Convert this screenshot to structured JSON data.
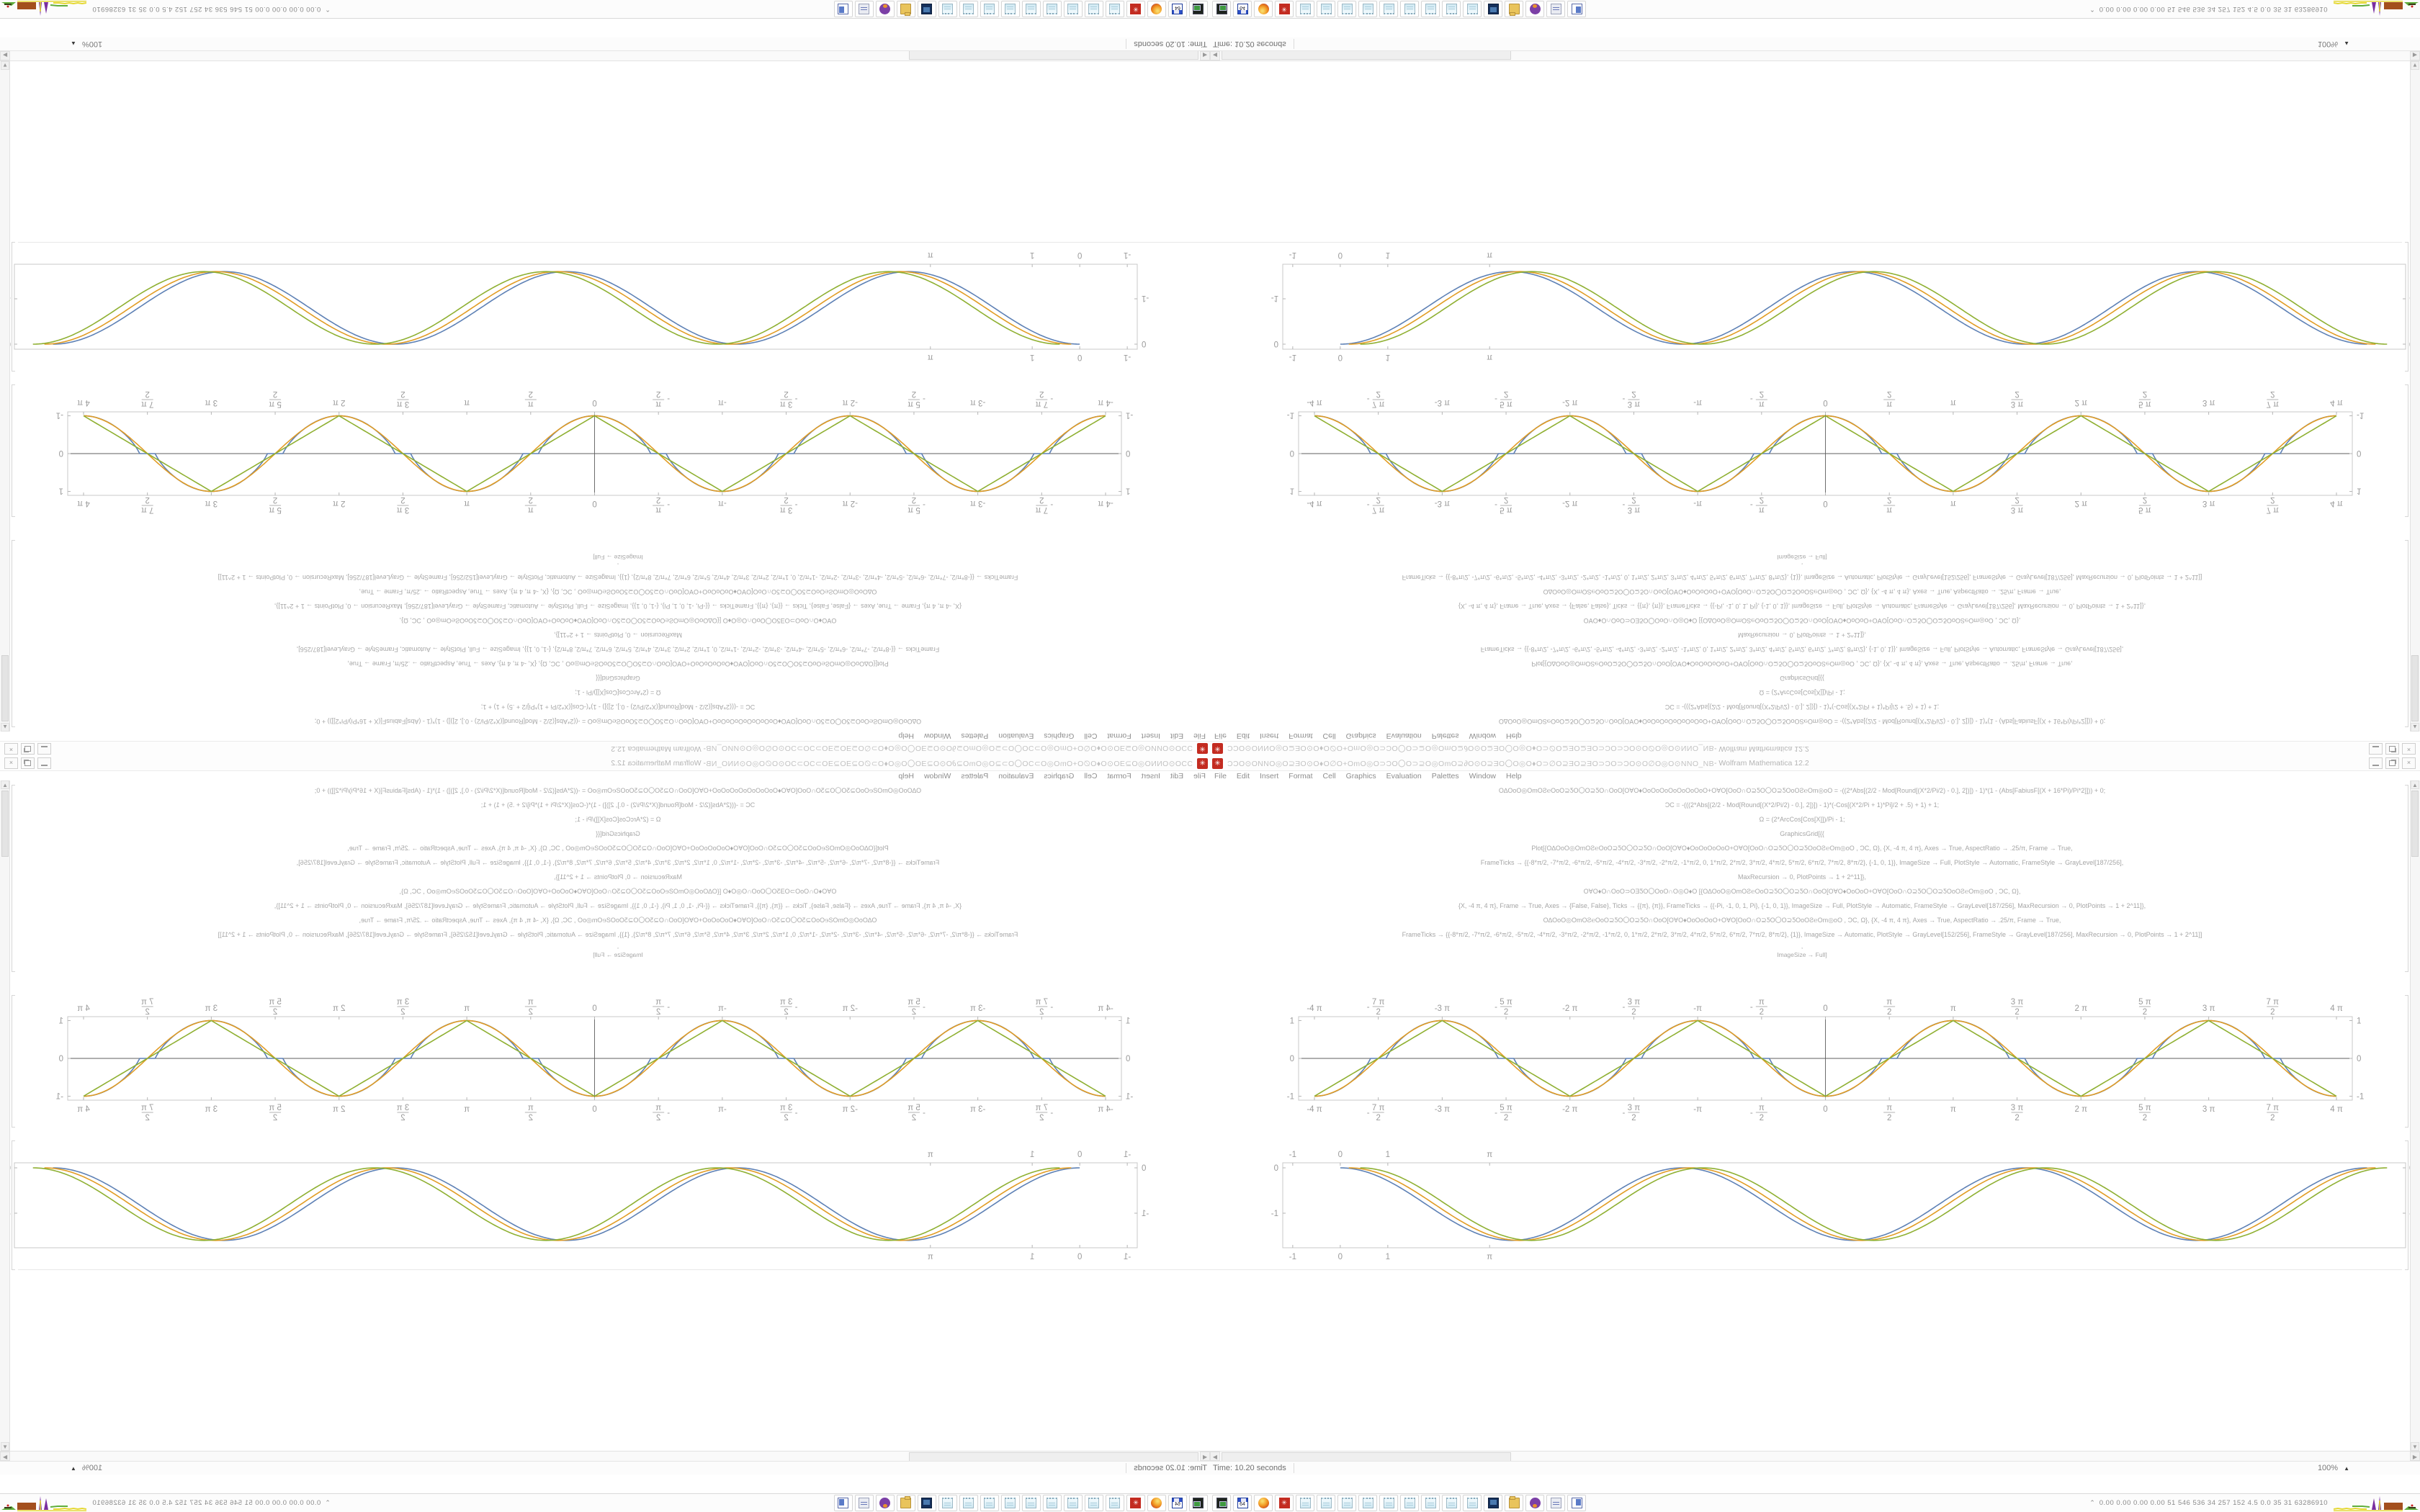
{
  "window": {
    "title_junk": "ƆƆΟ⊙ΟΝΝΟ◎Ο⊇ƎΟ⊙Ο♦Ο∅Ο+ΟmΟ◎Ο⊃ƆΟ〇Ο⊃⊇Ο◎ΟmΟ⊇∂Ο⊙Ο⊇ƎΟ〇Ο◎Ο♦Ο⊃∅Ο⊇ƎΟ⊇ƎΟ⊃ƆΟ⊃ƆΟ⊙Ο∅Ο◎Ο⊙ΝΝΟ_ΝΒ",
    "title_text": " - Wolfram Mathematica 12.2",
    "controls": {
      "close": "×"
    }
  },
  "menu": {
    "items": [
      "File",
      "Edit",
      "Insert",
      "Format",
      "Cell",
      "Graphics",
      "Evaluation",
      "Palettes",
      "Window",
      "Help"
    ]
  },
  "code": {
    "lines": [
      {
        "t": "Ο∆ΟοΟ◎ΟmΟƧ℮ΟοΟ⊇ƼΟ〇Ο⊇ƼΟ∩ΟοΟ[Ο∀Ο♦ΟοΟοΟοΟοΟοΟοΟοΟ+Ο∀Ο[ΟοΟ∩Ο⊇ƼΟ〇Ο⊇ƼΟοΟƧ℮Οm◎οΟ   = -((2*Abs[(2/2 - Mod[Round[(X*2/Pi/2) - 0.], 2])]) - 1)*(1 - (Abs[FabiusF[(X + 16*Pi)/Pi*2]])) + 0;"
      },
      {
        "t": "ƆC = -(((2*Abs[(2/2 - Mod[Round[(X*2/Pi/2) - 0.], 2])]) - 1)*(-Cos[(X*2/Pi + 1)*Pi]/2 + .5) + 1) + 1;"
      },
      {
        "t": "Ω = (2*ArcCos[Cos[X]])/Pi - 1;"
      },
      {
        "t": "GraphicsGrid[{{"
      },
      {
        "t": "Plot[{Ο∆ΟοΟ◎ΟmΟƧ℮ΟοΟ⊇ƼΟ〇Ο⊇ƼΟ∩ΟοΟ[Ο∀Ο♦ΟοΟοΟοΟοΟ+Ο∀Ο[ΟοΟ∩Ο⊇ƼΟ〇Ο⊇ƼΟοΟƧ℮Οm◎οΟ , ƆC, Ω}, {X, -4 π, 4 π}, Axes → True, AspectRatio → .25/π, Frame → True,"
      },
      {
        "t": "FrameTicks → {{-8*π/2, -7*π/2, -6*π/2, -5*π/2, -4*π/2, -3*π/2, -2*π/2, -1*π/2, 0, 1*π/2, 2*π/2, 3*π/2, 4*π/2, 5*π/2, 6*π/2, 7*π/2, 8*π/2}, {-1, 0, 1}}, ImageSize → Full, PlotStyle → Automatic, FrameStyle → GrayLevel[187/256],"
      },
      {
        "t": "MaxRecursion → 0, PlotPoints → 1 + 2^11]},"
      },
      {
        "t": "Ο∀Ο♦Ο∩ΟοΟ⊃ΟƎƼΟ〇ΟοΟ∩Ο◎Ο♦Ο  [{Ο∆ΟοΟ◎ΟmΟƧ℮ΟοΟ⊇ƼΟ〇Ο⊇ƼΟ∩ΟοΟ[Ο∀Ο♦ΟοΟοΟ+Ο∀Ο[ΟοΟ∩Ο⊇ƼΟ〇Ο⊇ƼΟοΟƧ℮Οm◎οΟ , ƆC, Ω},"
      },
      {
        "t": "{X, -4 π, 4 π}, Frame → True, Axes → {False, False}, Ticks → {{π}, {π}}, FrameTicks → {{-Pi, -1, 0, 1, Pi}, {-1, 0, 1}}, ImageSize → Full, PlotStyle → Automatic, FrameStyle → GrayLevel[187/256], MaxRecursion → 0, PlotPoints → 1 + 2^11]},"
      },
      {
        "t": "Ο∆ΟοΟ◎ΟmΟƧ℮ΟοΟ⊇ƼΟ〇Ο⊇ƼΟ∩ΟοΟ[Ο∀Ο♦ΟοΟοΟοΟ+Ο∀Ο[ΟοΟ∩Ο⊇ƼΟ〇Ο⊇ƼΟοΟƧ℮Οm◎οΟ , ƆC, Ω}, {X, -4 π, 4 π}, Axes → True, AspectRatio → .25/π, Frame → True,"
      },
      {
        "t": "FrameTicks → {{-8*π/2, -7*π/2, -6*π/2, -5*π/2, -4*π/2, -3*π/2, -2*π/2, -1*π/2, 0, 1*π/2, 2*π/2, 3*π/2, 4*π/2, 5*π/2, 6*π/2, 7*π/2, 8*π/2}, {1}}, ImageSize → Automatic, PlotStyle → GrayLevel[152/256], FrameStyle → GrayLevel[187/256], MaxRecursion → 0, PlotPoints → 1 + 2^11]]"
      },
      {
        "t": ",",
        "cls": "tight"
      },
      {
        "t": "ImageSize → Full]",
        "cls": "tight"
      }
    ]
  },
  "status": {
    "time": "Time: 10.20 seconds",
    "zoom": "100%"
  },
  "taskbar": {
    "buttons": [
      {
        "icon": "terminal-icon"
      },
      {
        "icon": "floppy-64-icon",
        "label": "64"
      },
      {
        "icon": "firefox-icon"
      },
      {
        "icon": "mathematica-icon"
      },
      {
        "icon": "notepad-icon"
      },
      {
        "icon": "notepad-icon"
      },
      {
        "icon": "notepad-icon"
      },
      {
        "icon": "notepad-icon"
      },
      {
        "icon": "notepad-icon"
      },
      {
        "icon": "notepad-icon"
      },
      {
        "icon": "notepad-icon"
      },
      {
        "icon": "notepad-icon"
      },
      {
        "icon": "notepad-icon"
      },
      {
        "icon": "monitor-icon"
      },
      {
        "icon": "folder-icon"
      },
      {
        "icon": "media-player-icon"
      },
      {
        "icon": "document-icon"
      },
      {
        "icon": "window-switcher-icon"
      }
    ],
    "monitor": {
      "chevron": "⌃",
      "values": [
        "0.00",
        "0.00",
        "0.00",
        "0.00",
        "51",
        "546",
        "536",
        "34",
        "257",
        "152",
        "4.5",
        "0.0",
        "35",
        "31",
        "63286910"
      ],
      "graph_colors": {
        "yellow": "#e5d832",
        "green": "#5fae3c",
        "purple": "#7a2ea0",
        "brown": "#a34f1d",
        "red": "#cc2222",
        "dark": "#3a3a1a"
      }
    }
  },
  "chart_data": [
    {
      "type": "line",
      "title": "",
      "xlabel": "",
      "ylabel": "",
      "x_unit": "multiples of π",
      "xlim_u": [
        -4.124,
        4.124
      ],
      "ylim": [
        -1.104,
        1.104
      ],
      "frame": true,
      "axes": true,
      "grid": false,
      "legend": "none",
      "frame_color": "#c9c9c9",
      "axis_color": "#5f5f5f",
      "tick_label_color": "#9a9a9a",
      "x_ticks": [
        {
          "u": -4,
          "label": "-4 π"
        },
        {
          "u": -3.5,
          "num": "7 π",
          "den": "2",
          "neg": true
        },
        {
          "u": -3,
          "label": "-3 π"
        },
        {
          "u": -2.5,
          "num": "5 π",
          "den": "2",
          "neg": true
        },
        {
          "u": -2,
          "label": "-2 π"
        },
        {
          "u": -1.5,
          "num": "3 π",
          "den": "2",
          "neg": true
        },
        {
          "u": -1,
          "label": "-π"
        },
        {
          "u": -0.5,
          "num": "π",
          "den": "2",
          "neg": true
        },
        {
          "u": 0,
          "label": "0"
        },
        {
          "u": 0.5,
          "num": "π",
          "den": "2"
        },
        {
          "u": 1,
          "label": "π"
        },
        {
          "u": 1.5,
          "num": "3 π",
          "den": "2"
        },
        {
          "u": 2,
          "label": "2 π"
        },
        {
          "u": 2.5,
          "num": "5 π",
          "den": "2"
        },
        {
          "u": 3,
          "label": "3 π"
        },
        {
          "u": 3.5,
          "num": "7 π",
          "den": "2"
        },
        {
          "u": 4,
          "label": "4 π"
        }
      ],
      "y_ticks": [
        {
          "v": 1,
          "label": "1"
        },
        {
          "v": 0,
          "label": "0"
        },
        {
          "v": -1,
          "label": "-1"
        }
      ],
      "series": [
        {
          "name": "FabiusF smoothed wave",
          "color": "#5e81b5",
          "shape": "cos-flat",
          "flat_deadzone": 0.2,
          "samples_x_over_pi": [
            -4,
            -3.5,
            -3,
            -2.5,
            -2,
            -1.5,
            -1,
            -0.5,
            0,
            0.5,
            1,
            1.5,
            2,
            2.5,
            3,
            3.5,
            4
          ],
          "samples_y": [
            -1,
            0,
            1,
            0,
            -1,
            0,
            1,
            0,
            -1,
            0,
            1,
            0,
            -1,
            0,
            1,
            0,
            -1
          ]
        },
        {
          "name": "ƆC cosine wave",
          "color": "#e19c24",
          "shape": "cos",
          "samples_x_over_pi": [
            -4,
            -3.5,
            -3,
            -2.5,
            -2,
            -1.5,
            -1,
            -0.5,
            0,
            0.5,
            1,
            1.5,
            2,
            2.5,
            3,
            3.5,
            4
          ],
          "samples_y": [
            -1,
            0,
            1,
            0,
            -1,
            0,
            1,
            0,
            -1,
            0,
            1,
            0,
            -1,
            0,
            1,
            0,
            -1
          ]
        },
        {
          "name": "Ω triangle wave",
          "color": "#8fb032",
          "shape": "triangle",
          "samples_x_over_pi": [
            -4,
            -3.5,
            -3,
            -2.5,
            -2,
            -1.5,
            -1,
            -0.5,
            0,
            0.5,
            1,
            1.5,
            2,
            2.5,
            3,
            3.5,
            4
          ],
          "samples_y": [
            -1,
            0,
            1,
            0,
            -1,
            0,
            1,
            0,
            -1,
            0,
            1,
            0,
            -1,
            0,
            1,
            0,
            -1
          ]
        }
      ]
    },
    {
      "type": "line",
      "title": "",
      "xlabel": "",
      "ylabel": "",
      "xlim": [
        -1.21,
        22.41
      ],
      "ylim": [
        -1.762,
        0.111
      ],
      "frame": true,
      "axes": false,
      "grid": false,
      "legend": "none",
      "frame_color": "#c9c9c9",
      "tick_label_color": "#9a9a9a",
      "x_ticks": [
        {
          "x": -1,
          "label": "-1"
        },
        {
          "x": 0,
          "label": "0"
        },
        {
          "x": 1,
          "label": "1"
        },
        {
          "x": 3.1416,
          "label": "π"
        }
      ],
      "y_ticks": [
        {
          "v": 0,
          "label": "0"
        },
        {
          "v": -1,
          "label": "-1"
        }
      ],
      "wave": {
        "formula": "y = -0.8*(1 - cos(2π(x - phase)/7.2))",
        "period": 7.2,
        "min": -1.6,
        "max": 0,
        "domain_length": 21.6
      },
      "series": [
        {
          "name": "blue shifted wave",
          "color": "#5e81b5",
          "phase": 0
        },
        {
          "name": "orange shifted wave",
          "color": "#e19c24",
          "phase": 0.18
        },
        {
          "name": "green shifted wave",
          "color": "#8fb032",
          "phase": 0.42
        }
      ]
    }
  ]
}
